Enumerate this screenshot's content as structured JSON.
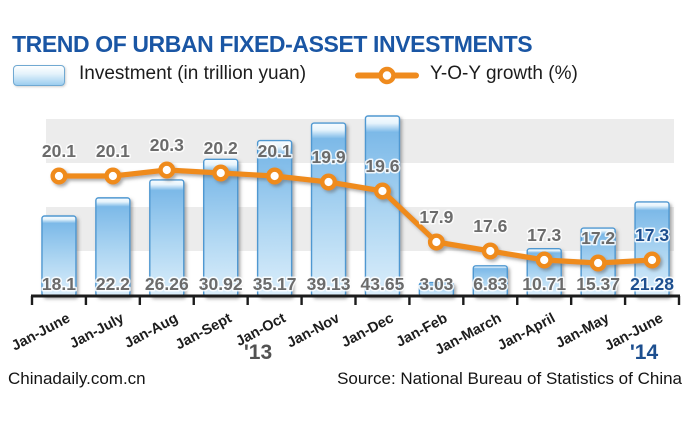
{
  "page": {
    "title": "TREND OF URBAN FIXED-ASSET INVESTMENTS"
  },
  "legend": {
    "investment_label": "Investment (in trillion yuan)",
    "growth_label": "Y-O-Y growth (%)"
  },
  "chart_data": {
    "type": "combo",
    "categories": [
      "Jan-June",
      "Jan-July",
      "Jan-Aug",
      "Jan-Sept",
      "Jan-Oct",
      "Jan-Nov",
      "Jan-Dec",
      "Jan-Feb",
      "Jan-March",
      "Jan-April",
      "Jan-May",
      "Jan-June"
    ],
    "series": [
      {
        "name": "Investment (in trillion yuan)",
        "type": "bar",
        "values": [
          18.1,
          22.2,
          26.26,
          30.92,
          35.17,
          39.13,
          43.65,
          3.03,
          6.83,
          10.71,
          15.37,
          21.28
        ]
      },
      {
        "name": "Y-O-Y growth (%)",
        "type": "line",
        "values": [
          20.1,
          20.1,
          20.3,
          20.2,
          20.1,
          19.9,
          19.6,
          17.9,
          17.6,
          17.3,
          17.2,
          17.3
        ]
      }
    ],
    "year_labels": [
      {
        "text": "'13",
        "x": 258,
        "highlight": false
      },
      {
        "text": "'14",
        "x": 644,
        "highlight": true
      }
    ],
    "highlight_last_index": 11,
    "grid": "horizontal-stripes",
    "legend_position": "top",
    "xlabel_rotation_deg": -28,
    "bar_axis_hint": {
      "value_at_full_height": 40.7,
      "clip_tall_bars": true
    },
    "line_axis_hint": {
      "top_value": 20.3,
      "bottom_value": 17.2
    }
  },
  "footer": {
    "left": "Chinadaily.com.cn",
    "right": "Source: National Bureau of Statistics of China"
  },
  "colors": {
    "title_blue": "#1a56a4",
    "line_orange": "#ef8b1e",
    "label_gray": "#6b6b6b",
    "highlight_navy": "#1d4f8f",
    "stripe_gray": "#ececec",
    "bar_border": "#4f98d1",
    "bar_fill_top": "#7cb9e8",
    "bar_fill_bottom": "#dbeefb",
    "axis_black": "#1c1c1c",
    "xlabel_color": "#1d1d1d",
    "year_gray": "#525252",
    "footer_color": "#141414"
  }
}
